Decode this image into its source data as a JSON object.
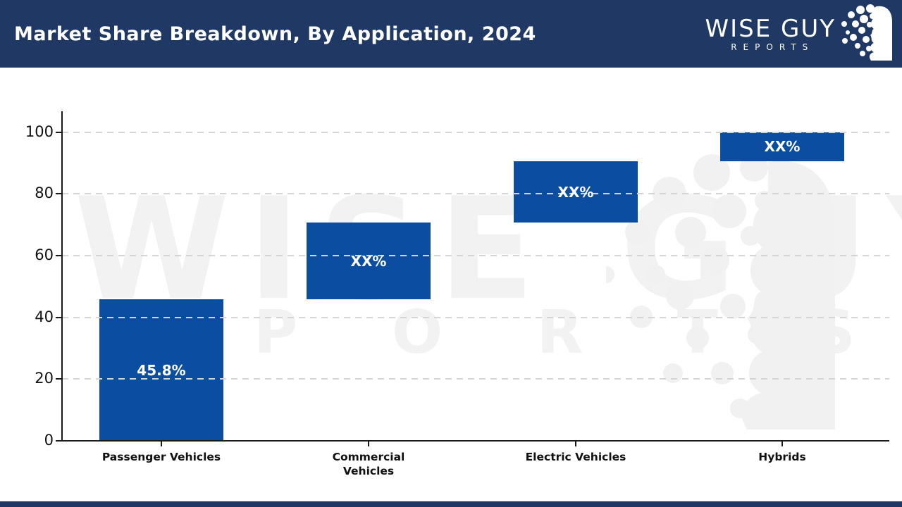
{
  "header": {
    "title": "Market Share Breakdown, By Application, 2024",
    "bg_color": "#1f3864",
    "logo": {
      "line1": "WISE GUY",
      "line2": "REPORTS",
      "icon": "dotted-head-profile-icon"
    }
  },
  "watermark": {
    "line1": "WISE GUY",
    "line2": "P O R T S",
    "icon": "dotted-head-watermark",
    "color": "#f2f2f2"
  },
  "footer": {
    "bg_color": "#1f3864"
  },
  "chart_data": {
    "type": "bar",
    "subtype": "waterfall-floating-bars",
    "title": "Market Share Breakdown, By Application, 2024",
    "xlabel": "",
    "ylabel": "",
    "categories": [
      "Passenger Vehicles",
      "Commercial\nVehicles",
      "Electric Vehicles",
      "Hybrids"
    ],
    "segments": [
      {
        "category": "Passenger Vehicles",
        "label": "45.8%",
        "start": 0,
        "end": 45.8,
        "value": 45.8
      },
      {
        "category": "Commercial Vehicles",
        "label": "XX%",
        "start": 45.8,
        "end": 70.7,
        "value": 24.9
      },
      {
        "category": "Electric Vehicles",
        "label": "XX%",
        "start": 70.7,
        "end": 90.5,
        "value": 19.8
      },
      {
        "category": "Hybrids",
        "label": "XX%",
        "start": 90.5,
        "end": 100,
        "value": 9.5
      }
    ],
    "yticks": [
      0,
      20,
      40,
      60,
      80,
      100
    ],
    "ylim": [
      0,
      100
    ],
    "grid": "horizontal-dashed-light-gray-over-bars",
    "legend": "none",
    "bar_color": "#0b4da1",
    "label_color": "#ffffff"
  }
}
